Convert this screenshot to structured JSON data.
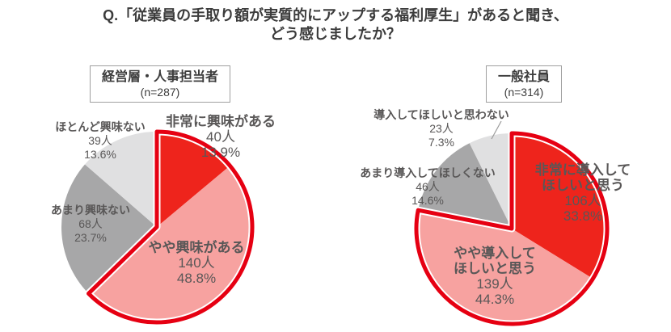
{
  "title": {
    "line1": "Q.「従業員の手取り額が実質的にアップする福利厚生」があると聞き、",
    "line2": "どう感じましたか？"
  },
  "colors": {
    "strong_red": "#ee241c",
    "outline_red": "#e60012",
    "pink": "#f7a2a0",
    "gray_dark": "#a7a7a8",
    "gray_light": "#e0e0e1",
    "label_text": "#595757",
    "title_text": "#3c3c3c",
    "box_border": "#a0a0a0",
    "leader_line": "#9a9a9a"
  },
  "chart_data": [
    {
      "type": "pie",
      "group_label": "経営層・人事担当者",
      "n_label": "(n=287)",
      "start_angle_deg": 0,
      "direction": "clockwise",
      "highlight_first_n": 2,
      "slices": [
        {
          "label_lines": [
            "非常に興味がある"
          ],
          "count": "40人",
          "percent": 13.9,
          "percent_label": "13.9%",
          "color_key": "strong_red"
        },
        {
          "label_lines": [
            "やや興味がある"
          ],
          "count": "140人",
          "percent": 48.8,
          "percent_label": "48.8%",
          "color_key": "pink"
        },
        {
          "label_lines": [
            "あまり興味ない"
          ],
          "count": "68人",
          "percent": 23.7,
          "percent_label": "23.7%",
          "color_key": "gray_dark"
        },
        {
          "label_lines": [
            "ほとんど興味ない"
          ],
          "count": "39人",
          "percent": 13.6,
          "percent_label": "13.6%",
          "color_key": "gray_light"
        }
      ]
    },
    {
      "type": "pie",
      "group_label": "一般社員",
      "n_label": "(n=314)",
      "start_angle_deg": 0,
      "direction": "clockwise",
      "highlight_first_n": 2,
      "slices": [
        {
          "label_lines": [
            "非常に導入して",
            "ほしいと思う"
          ],
          "count": "106人",
          "percent": 33.8,
          "percent_label": "33.8%",
          "color_key": "strong_red"
        },
        {
          "label_lines": [
            "やや導入して",
            "ほしいと思う"
          ],
          "count": "139人",
          "percent": 44.3,
          "percent_label": "44.3%",
          "color_key": "pink"
        },
        {
          "label_lines": [
            "あまり導入してほしくない"
          ],
          "count": "46人",
          "percent": 14.6,
          "percent_label": "14.6%",
          "color_key": "gray_dark"
        },
        {
          "label_lines": [
            "導入してほしいと思わない"
          ],
          "count": "23人",
          "percent": 7.3,
          "percent_label": "7.3%",
          "color_key": "gray_light"
        }
      ]
    }
  ]
}
